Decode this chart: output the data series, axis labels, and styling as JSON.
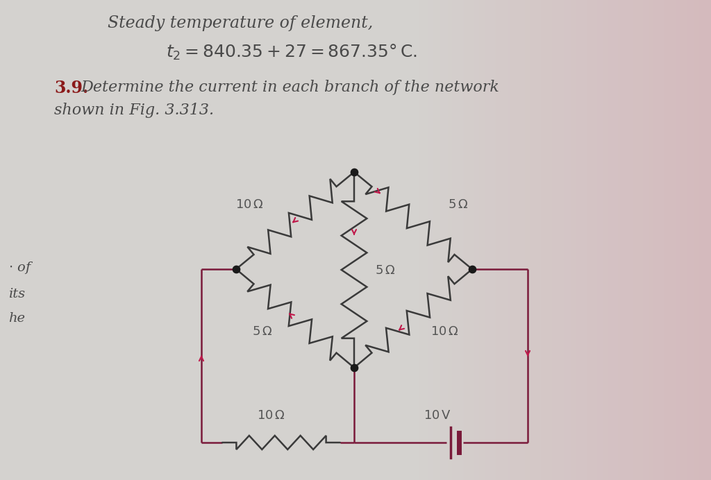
{
  "bg_color_left": "#d4d2cf",
  "bg_color_right": "#d9c8c8",
  "text_color": "#4a4a4a",
  "wire_color": "#7a1a3a",
  "node_color": "#1a1a1a",
  "arrow_color": "#c0184a",
  "resistor_color": "#3a3a3a",
  "label_color": "#555555",
  "title_line1": "Steady temperature of element,",
  "eq_line": "t_2 = 840.35 + 27 = 867.35° C.",
  "section_line1": "3.9. Determine the current in each branch of the network",
  "section_line2": "shown in Fig. 3.313.",
  "left_text": [
    "of",
    "its",
    "he"
  ],
  "resistor_labels": [
    "10Ω",
    "5Ω",
    "5Ω",
    "5Ω",
    "10Ω",
    "10Ω",
    "10 V"
  ],
  "font_size_title": 17,
  "font_size_eq": 18,
  "font_size_section": 16,
  "font_size_label": 13
}
